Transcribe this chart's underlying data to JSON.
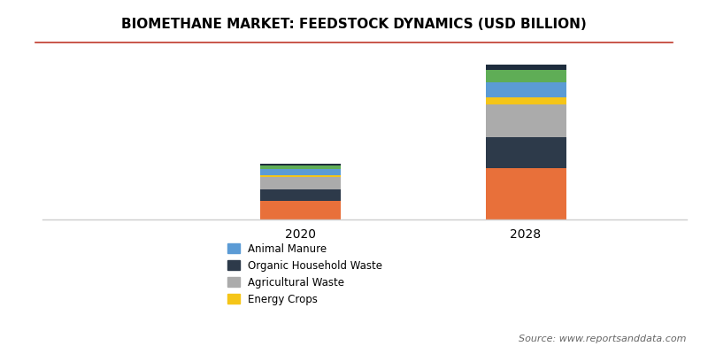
{
  "title": "BIOMETHANE MARKET: FEEDSTOCK DYNAMICS (USD BILLION)",
  "years": [
    "2020",
    "2028"
  ],
  "segments": [
    {
      "label": "orange_bottom",
      "color": "#E8703A",
      "values": [
        1.0,
        2.8
      ]
    },
    {
      "label": "dark_navy",
      "color": "#2D3A4A",
      "values": [
        0.65,
        1.7
      ]
    },
    {
      "label": "gray",
      "color": "#ABABAB",
      "values": [
        0.65,
        1.75
      ]
    },
    {
      "label": "yellow",
      "color": "#F5C518",
      "values": [
        0.13,
        0.38
      ]
    },
    {
      "label": "blue",
      "color": "#5B9BD5",
      "values": [
        0.3,
        0.85
      ]
    },
    {
      "label": "green",
      "color": "#5FAD56",
      "values": [
        0.22,
        0.68
      ]
    },
    {
      "label": "top_dark",
      "color": "#1E2D3D",
      "values": [
        0.08,
        0.28
      ]
    }
  ],
  "legend_items": [
    {
      "label": "Animal Manure",
      "color": "#5B9BD5"
    },
    {
      "label": "Organic Household Waste",
      "color": "#2D3A4A"
    },
    {
      "label": "Agricultural Waste",
      "color": "#ABABAB"
    },
    {
      "label": "Energy Crops",
      "color": "#F5C518"
    }
  ],
  "bar_width": 0.25,
  "title_fontsize": 11,
  "source_text": "Source: www.reportsanddata.com",
  "line_color": "#C0392B",
  "background_color": "#FFFFFF",
  "xlim": [
    -0.5,
    1.5
  ],
  "bar_positions": [
    0.3,
    1.0
  ]
}
